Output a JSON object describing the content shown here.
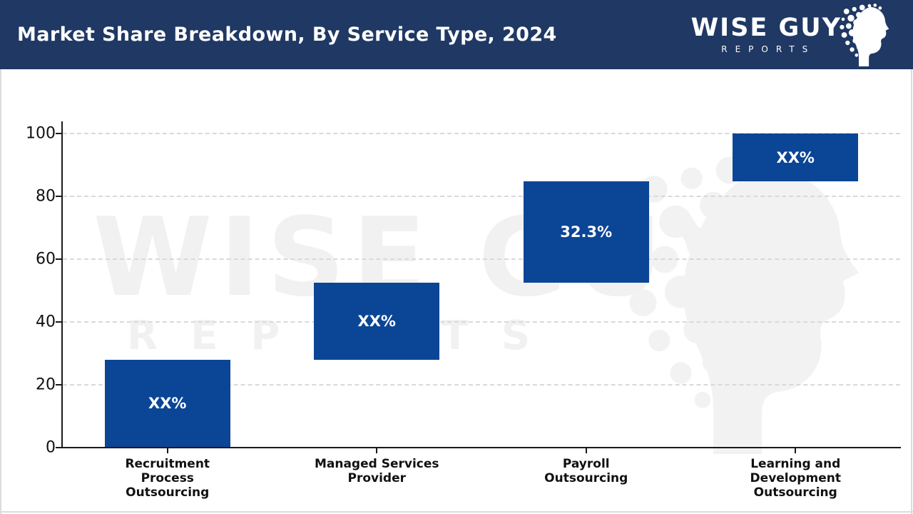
{
  "header": {
    "title": "Market Share Breakdown, By Service Type, 2024",
    "logo": {
      "line1": "WISE GUY",
      "line2": "REPORTS"
    }
  },
  "watermark": {
    "line1": "WISE GUY",
    "line2": "REPORTS"
  },
  "chart_data": {
    "type": "bar",
    "subtype": "waterfall-segments",
    "title": "Market Share Breakdown, By Service Type, 2024",
    "categories": [
      "Recruitment\nProcess\nOutsourcing",
      "Managed Services\nProvider",
      "Payroll\nOutsourcing",
      "Learning and\nDevelopment\nOutsourcing"
    ],
    "segments": [
      {
        "category": "Recruitment Process Outsourcing",
        "start": 0,
        "end": 28,
        "value_est": 28,
        "label": "XX%"
      },
      {
        "category": "Managed Services Provider",
        "start": 28,
        "end": 52.4,
        "value_est": 24.4,
        "label": "XX%"
      },
      {
        "category": "Payroll Outsourcing",
        "start": 52.4,
        "end": 84.7,
        "value_est": 32.3,
        "label": "32.3%"
      },
      {
        "category": "Learning and Development Outsourcing",
        "start": 84.7,
        "end": 100,
        "value_est": 15.3,
        "label": "XX%"
      }
    ],
    "yticks": [
      0,
      20,
      40,
      60,
      80,
      100
    ],
    "ylim": [
      0,
      104
    ],
    "grid": "horizontal-dashed",
    "legend": "none",
    "colors": {
      "bar": "#0b4596",
      "bar_label": "#ffffff",
      "axis": "#1a1a1a",
      "grid": "#d9d9d9",
      "header_bg": "#1f3864",
      "watermark": "#f1f1f1"
    }
  }
}
